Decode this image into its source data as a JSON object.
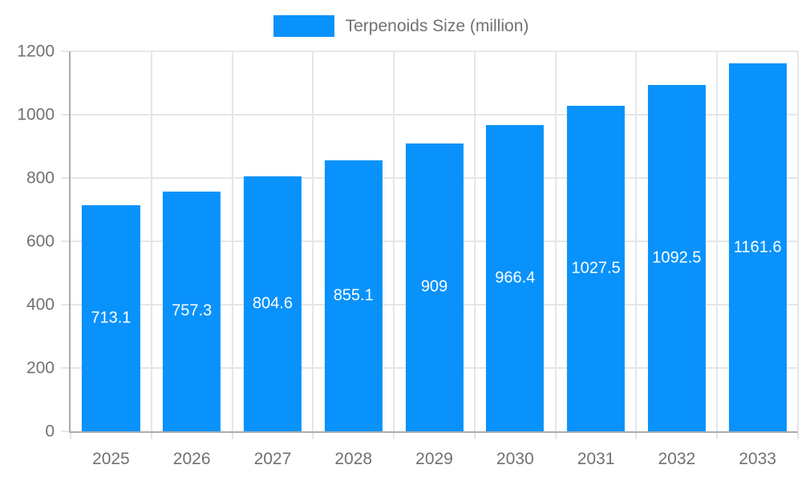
{
  "chart_data": {
    "type": "bar",
    "title": "Terpenoids Size (million)",
    "categories": [
      "2025",
      "2026",
      "2027",
      "2028",
      "2029",
      "2030",
      "2031",
      "2032",
      "2033"
    ],
    "series": [
      {
        "name": "Terpenoids Size (million)",
        "values": [
          713.1,
          757.3,
          804.6,
          855.1,
          909,
          966.4,
          1027.5,
          1092.5,
          1161.6
        ]
      }
    ],
    "value_labels": [
      "713.1",
      "757.3",
      "804.6",
      "855.1",
      "909",
      "966.4",
      "1027.5",
      "1092.5",
      "1161.6"
    ],
    "xlabel": "",
    "ylabel": "",
    "ylim": [
      0,
      1200
    ],
    "y_ticks": [
      0,
      200,
      400,
      600,
      800,
      1000,
      1200
    ],
    "grid": true,
    "legend_position": "top",
    "bar_width_fraction": 0.716,
    "colors": {
      "bar": "#0992fb",
      "grid": "#e6e6e6",
      "axis": "#ababab",
      "tick_text": "#717171",
      "value_text": "#ffffff",
      "background": "#ffffff"
    }
  }
}
